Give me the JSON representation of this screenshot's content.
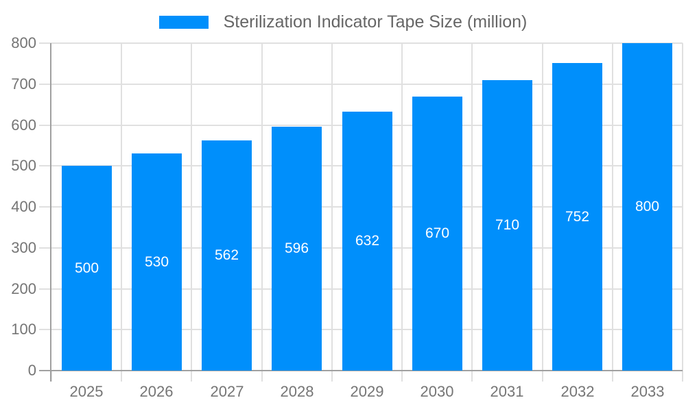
{
  "chart_data": {
    "type": "bar",
    "legend_label": "Sterilization Indicator Tape Size (million)",
    "categories": [
      "2025",
      "2026",
      "2027",
      "2028",
      "2029",
      "2030",
      "2031",
      "2032",
      "2033"
    ],
    "values": [
      500,
      530,
      562,
      596,
      632,
      670,
      710,
      752,
      800
    ],
    "ylim": [
      0,
      800
    ],
    "ytick_step": 100,
    "ytick_labels": [
      "0",
      "100",
      "200",
      "300",
      "400",
      "500",
      "600",
      "700",
      "800"
    ],
    "grid": true,
    "legend_position": "top",
    "colors": {
      "bar": "#008FFB",
      "bar_label": "#ffffff",
      "axis_line": "#a0a0a0",
      "grid_line": "#e0e0e0",
      "tick_label": "#757575",
      "legend_text": "#666666",
      "background": "#ffffff"
    }
  }
}
